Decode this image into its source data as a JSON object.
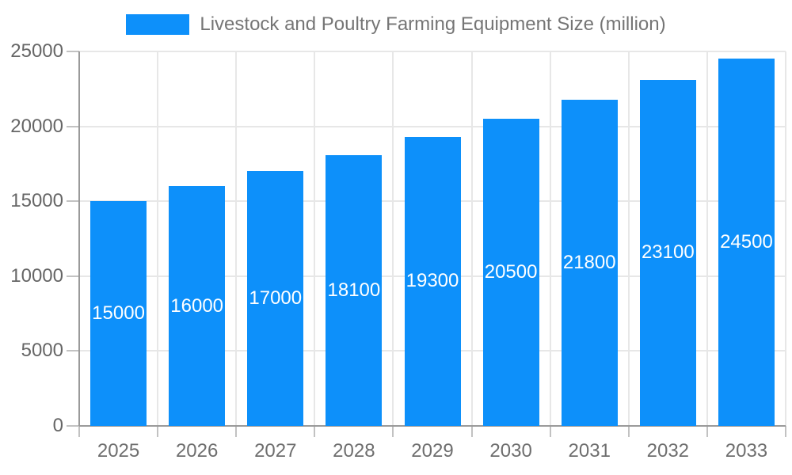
{
  "chart_data": {
    "type": "bar",
    "title": "",
    "legend_label": "Livestock and Poultry Farming Equipment Size (million)",
    "legend_position": "top",
    "categories": [
      "2025",
      "2026",
      "2027",
      "2028",
      "2029",
      "2030",
      "2031",
      "2032",
      "2033"
    ],
    "values": [
      15000,
      16000,
      17000,
      18100,
      19300,
      20500,
      21800,
      23100,
      24500
    ],
    "bar_labels": [
      "15000",
      "16000",
      "17000",
      "18100",
      "19300",
      "20500",
      "21800",
      "23100",
      "24500"
    ],
    "xlabel": "",
    "ylabel": "",
    "ylim": [
      0,
      25000
    ],
    "ytick_step": 5000,
    "ytick_labels": [
      "0",
      "5000",
      "10000",
      "15000",
      "20000",
      "25000"
    ],
    "grid": "on",
    "colors": {
      "bar": "#0d90fa",
      "bar_label": "#ffffff",
      "gridline": "#e7e7e7",
      "tick": "#c2c2c2",
      "axis_line": "#9a9a9a",
      "axis_text": "#666666",
      "legend_text": "#757575",
      "background": "#ffffff"
    }
  }
}
